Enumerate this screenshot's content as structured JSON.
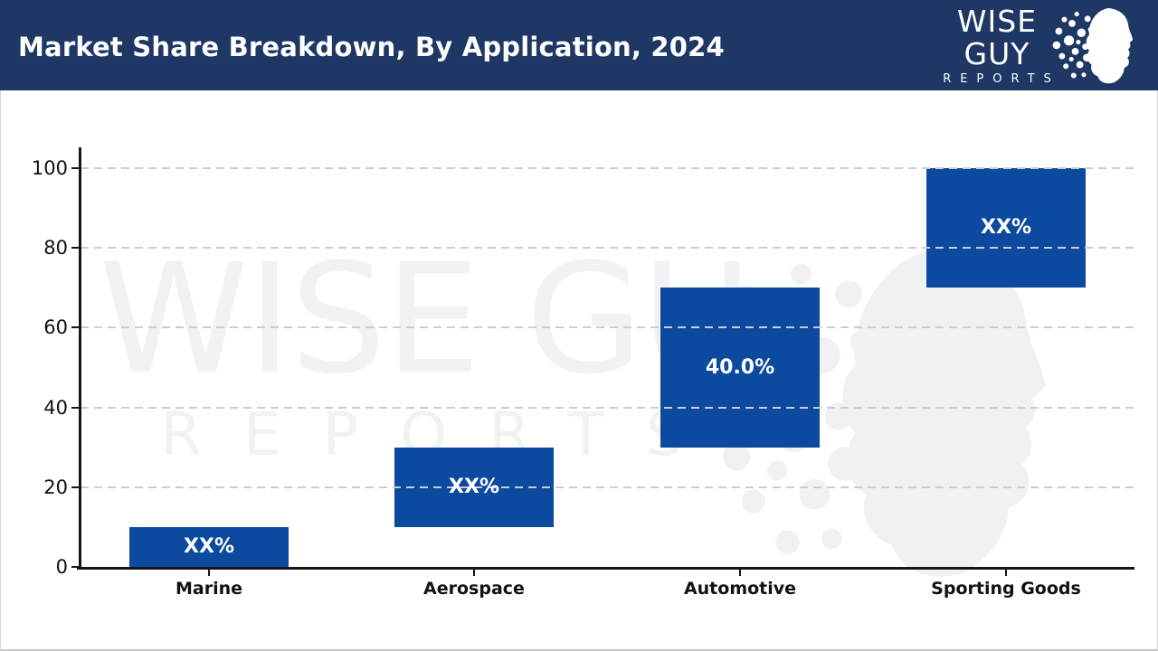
{
  "header": {
    "title": "Market Share Breakdown, By Application, 2024",
    "bg_color": "#1f3765",
    "logo": {
      "line1": "WISE GUY",
      "line2": "REPORTS"
    }
  },
  "watermark": {
    "line1": "WISE GU",
    "line2": "REPORTS"
  },
  "chart_data": {
    "type": "bar",
    "subtype": "waterfall",
    "title": "Market Share Breakdown, By Application, 2024",
    "categories": [
      "Marine",
      "Aerospace",
      "Automotive",
      "Sporting Goods"
    ],
    "values": [
      10,
      20,
      40,
      30
    ],
    "segments": [
      {
        "category": "Marine",
        "start": 0,
        "end": 10,
        "label": "XX%"
      },
      {
        "category": "Aerospace",
        "start": 10,
        "end": 30,
        "label": "XX%"
      },
      {
        "category": "Automotive",
        "start": 30,
        "end": 70,
        "label": "40.0%"
      },
      {
        "category": "Sporting Goods",
        "start": 70,
        "end": 100,
        "label": "XX%"
      }
    ],
    "y_ticks": [
      0,
      20,
      40,
      60,
      80,
      100
    ],
    "ylim": [
      0,
      105
    ],
    "xlabel": "",
    "ylabel": "",
    "grid": "horizontal-dashed",
    "legend": "none",
    "bar_color": "#0b4a9e",
    "bar_label_color": "#ffffff",
    "axis_color": "#161616",
    "gridline_color": "#cdcdcd"
  }
}
